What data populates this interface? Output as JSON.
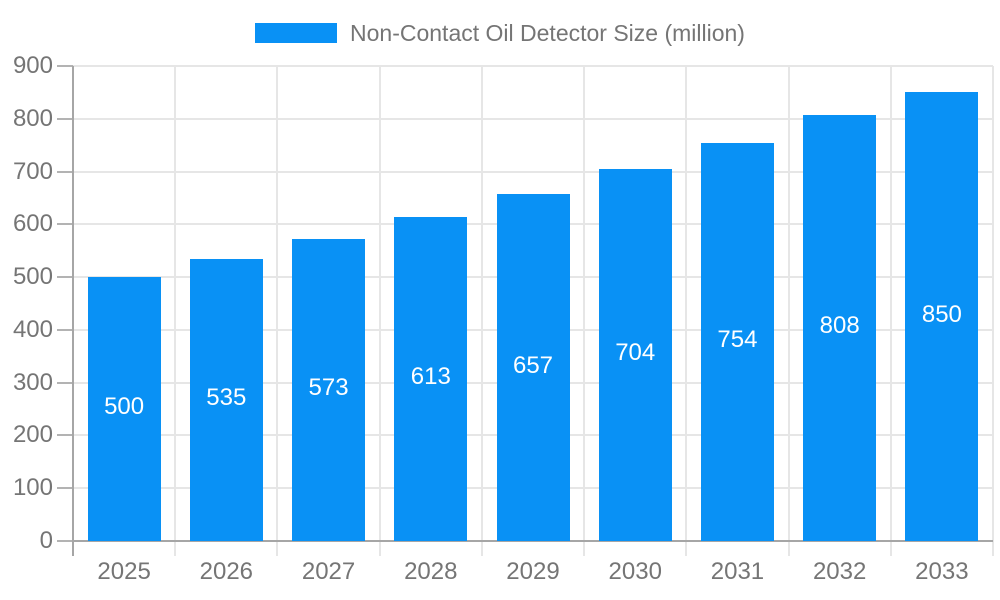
{
  "chart_data": {
    "type": "bar",
    "title": "",
    "categories": [
      "2025",
      "2026",
      "2027",
      "2028",
      "2029",
      "2030",
      "2031",
      "2032",
      "2033"
    ],
    "series": [
      {
        "name": "Non-Contact Oil Detector Size (million)",
        "values": [
          500,
          535,
          573,
          613,
          657,
          704,
          754,
          808,
          850
        ]
      }
    ],
    "xlabel": "",
    "ylabel": "",
    "ylim": [
      0,
      900
    ],
    "ytick_step": 100,
    "ytick_labels": [
      "0",
      "100",
      "200",
      "300",
      "400",
      "500",
      "600",
      "700",
      "800",
      "900"
    ],
    "grid": true,
    "legend_position": "top-center",
    "bar_value_labels_shown": true,
    "colors": {
      "bar": "#0991f5",
      "grid": "#e6e6e6",
      "axis_line": "#a6a6a6",
      "tick": "#b3b3b3",
      "axis_text": "#757575",
      "bar_value_text": "#ffffff",
      "background": "#ffffff"
    }
  }
}
